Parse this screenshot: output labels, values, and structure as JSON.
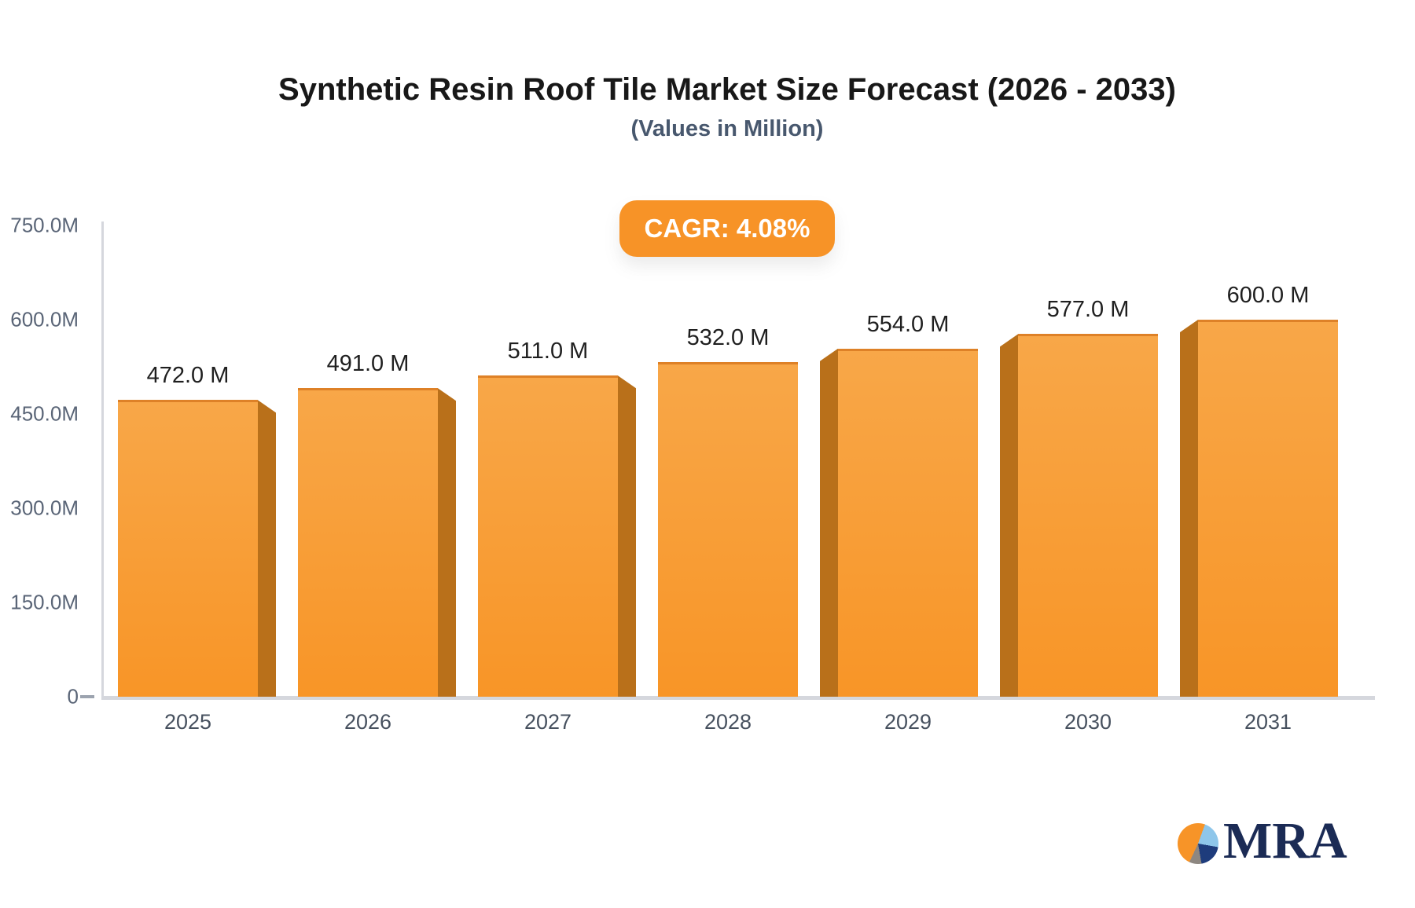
{
  "header": {
    "title": "Synthetic Resin Roof Tile Market Size Forecast (2026 - 2033)",
    "subtitle": "(Values in Million)"
  },
  "badge": {
    "label": "CAGR: 4.08%",
    "color": "#f79327"
  },
  "chart_data": {
    "type": "bar",
    "title": "Synthetic Resin Roof Tile Market Size Forecast (2026 - 2033)",
    "subtitle": "(Values in Million)",
    "categories": [
      "2025",
      "2026",
      "2027",
      "2028",
      "2029",
      "2030",
      "2031"
    ],
    "values": [
      472,
      491,
      511,
      532,
      554,
      577,
      600
    ],
    "value_labels": [
      "472.0 M",
      "491.0 M",
      "511.0 M",
      "532.0 M",
      "554.0 M",
      "577.0 M",
      "600.0 M"
    ],
    "units": "Million",
    "xlabel": "",
    "ylabel": "",
    "ylim": [
      0,
      750
    ],
    "yticks": [
      {
        "value": 750,
        "label": "750.0M"
      },
      {
        "value": 600,
        "label": "600.0M"
      },
      {
        "value": 450,
        "label": "450.0M"
      },
      {
        "value": 300,
        "label": "300.0M"
      },
      {
        "value": 150,
        "label": "150.0M"
      },
      {
        "value": 0,
        "label": "0"
      }
    ],
    "grid": false,
    "legend": "none",
    "style": "3d-perspective-bars",
    "colors": {
      "bar_face_top": "#f8a748",
      "bar_face_bottom": "#f89527",
      "bar_top_edge": "#de8127",
      "bar_side": "#b9701a",
      "axis_line": "#d5d7dd",
      "tick_label": "#5a6577",
      "value_label": "#1f1f1f"
    }
  },
  "logo": {
    "text": "MRA"
  }
}
